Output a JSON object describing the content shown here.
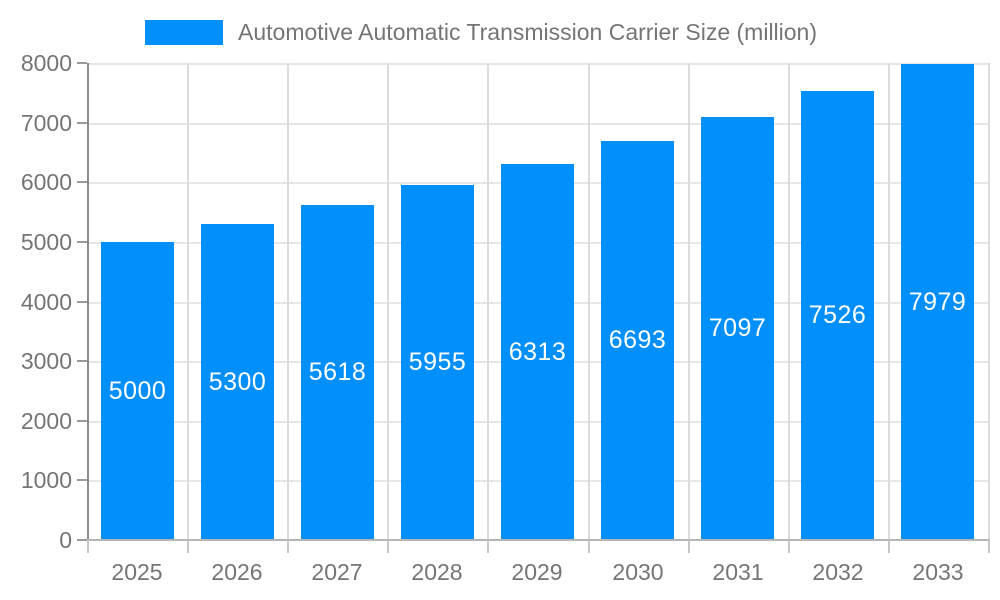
{
  "chart_data": {
    "type": "bar",
    "title": "Automotive Automatic Transmission Carrier Size (million)",
    "categories": [
      "2025",
      "2026",
      "2027",
      "2028",
      "2029",
      "2030",
      "2031",
      "2032",
      "2033"
    ],
    "series": [
      {
        "name": "Automotive Automatic Transmission Carrier Size (million)",
        "values": [
          5000,
          5300,
          5618,
          5955,
          6313,
          6693,
          7097,
          7526,
          7979
        ],
        "color": "#008FFB"
      }
    ],
    "data_labels": "values shown in white, centered vertically inside each bar",
    "xlabel": "",
    "ylabel": "",
    "ylim": [
      0,
      8000
    ],
    "y_ticks": [
      0,
      1000,
      2000,
      3000,
      4000,
      5000,
      6000,
      7000,
      8000
    ],
    "grid": "horizontal and vertical light gray gridlines",
    "legend_position": "top-center"
  },
  "colors": {
    "bar": "#008FFB",
    "bar_label_text": "#ffffff",
    "axis_text": "#757575",
    "legend_text": "#757575",
    "hgrid": "#e6e6e6",
    "vgrid": "#dcdcdc",
    "y_axis_line": "#8c8c8c",
    "x_axis_line": "#b5b5b5",
    "background": "#ffffff"
  }
}
